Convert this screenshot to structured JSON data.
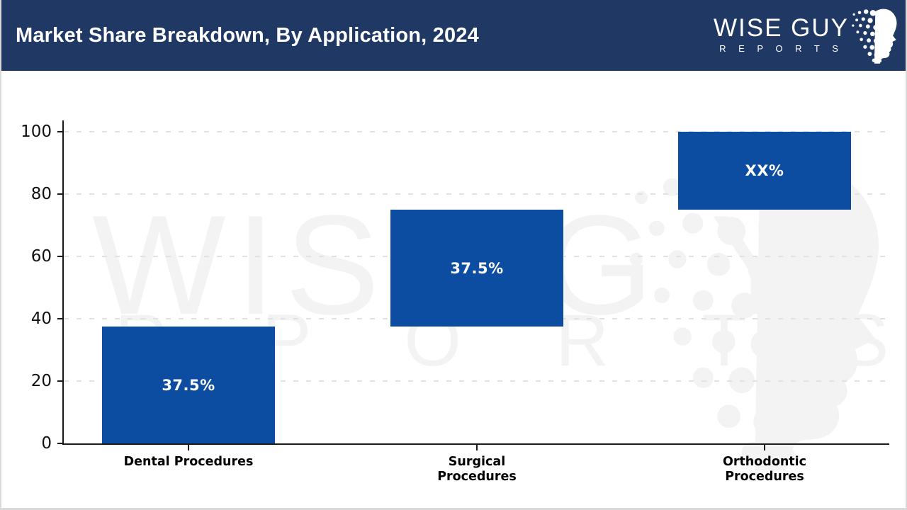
{
  "header": {
    "title": "Market Share Breakdown, By Application, 2024",
    "logo": {
      "line1": "WISE GUY",
      "line2": "R E P O R T S"
    }
  },
  "watermark": {
    "line1": "WISE G Y",
    "line2": "R  P O R T S"
  },
  "chart_data": {
    "type": "bar",
    "subtype": "waterfall",
    "title": "Market Share Breakdown, By Application, 2024",
    "categories": [
      "Dental Procedures",
      "Surgical Procedures",
      "Orthodontic Procedures"
    ],
    "category_label_lines": [
      [
        "Dental Procedures"
      ],
      [
        "Surgical",
        "Procedures"
      ],
      [
        "Orthodontic",
        "Procedures"
      ]
    ],
    "bars": [
      {
        "category": "Dental Procedures",
        "start": 0,
        "end": 37.5,
        "label": "37.5%"
      },
      {
        "category": "Surgical Procedures",
        "start": 37.5,
        "end": 75,
        "label": "37.5%"
      },
      {
        "category": "Orthodontic Procedures",
        "start": 75,
        "end": 100,
        "label": "XX%"
      }
    ],
    "yticks": [
      0,
      20,
      40,
      60,
      80,
      100
    ],
    "ylim": [
      0,
      103.5
    ],
    "xlabel": "",
    "ylabel": "",
    "grid": "dashed-horizontal",
    "legend": "none",
    "bar_color": "#0C4DA2",
    "bar_label_color": "#FFFFFF"
  },
  "colors": {
    "header_bg": "#203864",
    "page_bg": "#FFFFFF",
    "axis": "#1a1a1a",
    "grid": "#e2e2e2",
    "tick_text": "#111111",
    "watermark": "#f3f3f3",
    "border": "#d9d9d9",
    "bar": "#0C4DA2",
    "bar_label": "#FFFFFF"
  }
}
